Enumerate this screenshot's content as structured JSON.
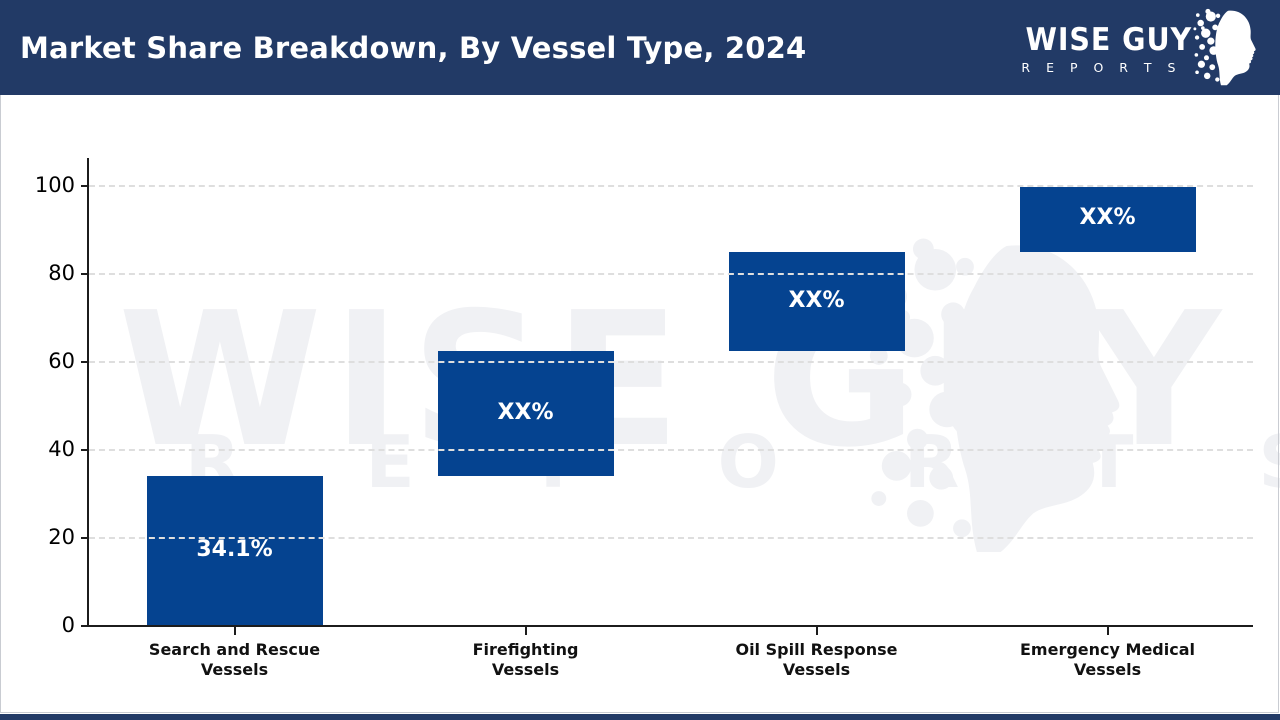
{
  "header": {
    "title": "Market Share Breakdown, By Vessel Type, 2024",
    "logo_line1": "WISE GUY",
    "logo_line2": "R E P O R T S"
  },
  "watermark": {
    "line1": "WISE GUY",
    "line2": "R E P O R T S"
  },
  "colors": {
    "header_bg": "#223A66",
    "bar": "#054390",
    "watermark": "#F0F1F4",
    "gridline": "#DEDEDE",
    "axis": "#1C1C1C"
  },
  "chart_data": {
    "type": "bar",
    "subtype": "waterfall",
    "title": "Market Share Breakdown, By Vessel Type, 2024",
    "categories": [
      "Search and Rescue\nVessels",
      "Firefighting\nVessels",
      "Oil Spill Response\nVessels",
      "Emergency Medical\nVessels"
    ],
    "segments": [
      {
        "category": "Search and Rescue Vessels",
        "start": 0,
        "end": 34.1,
        "label": "34.1%"
      },
      {
        "category": "Firefighting Vessels",
        "start": 34.1,
        "end": 62.4,
        "label": "XX%"
      },
      {
        "category": "Oil Spill Response Vessels",
        "start": 62.4,
        "end": 85.0,
        "label": "XX%"
      },
      {
        "category": "Emergency Medical Vessels",
        "start": 85.0,
        "end": 99.8,
        "label": "XX%"
      }
    ],
    "xlabel": "",
    "ylabel": "",
    "yticks": [
      0,
      20,
      40,
      60,
      80,
      100
    ],
    "ylim": [
      0,
      105
    ],
    "grid": "horizontal-dashed",
    "grid_above_bars": true,
    "legend": "none",
    "bar_color": "#054390",
    "label_color": "#ffffff"
  }
}
